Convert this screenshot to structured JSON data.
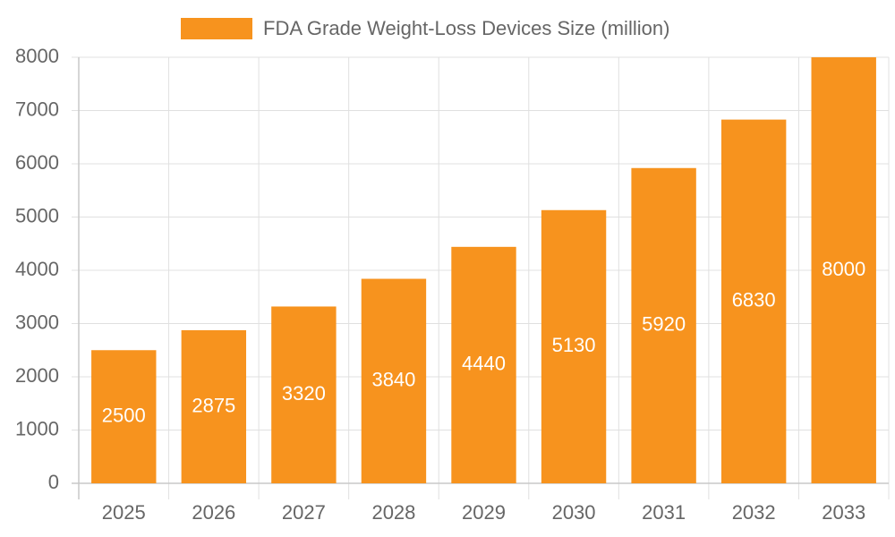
{
  "chart_data": {
    "type": "bar",
    "categories": [
      "2025",
      "2026",
      "2027",
      "2028",
      "2029",
      "2030",
      "2031",
      "2032",
      "2033"
    ],
    "series": [
      {
        "name": "FDA Grade Weight-Loss Devices Size (million)",
        "color": "#f7931e",
        "values": [
          2500,
          2875,
          3320,
          3840,
          4440,
          5130,
          5920,
          6830,
          8000
        ]
      }
    ],
    "ylim": [
      0,
      8000
    ],
    "yticks": [
      0,
      1000,
      2000,
      3000,
      4000,
      5000,
      6000,
      7000,
      8000
    ],
    "grid": true,
    "legend": "top"
  }
}
